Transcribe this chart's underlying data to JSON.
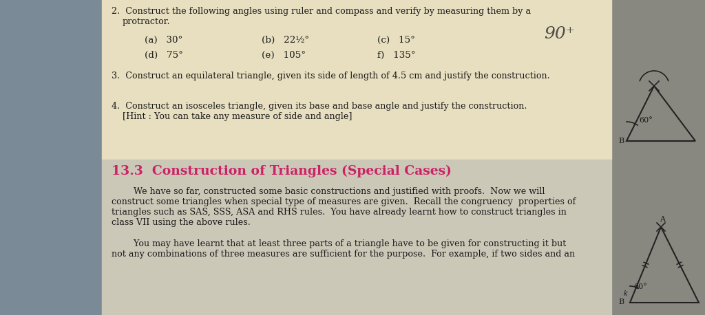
{
  "cream_bg": "#e8dfc0",
  "page_bg": "#a8a898",
  "lower_bg": "#c8c4b4",
  "left_bg": "#8090a0",
  "right_bg": "#909090",
  "title_color": "#cc2266",
  "body_color": "#1a1a1a",
  "q2_header1": "2.  Construct the following angles using ruler and compass and verify by measuring them by a",
  "q2_header2": "    protractor.",
  "q2_a": "(a)   30°",
  "q2_b": "(b)   22½°",
  "q2_c": "(c)   15°",
  "q2_d": "(d)   75°",
  "q2_e": "(e)   105°",
  "q2_f": "f)   135°",
  "q2_annot": "90⁺",
  "q3": "3.  Construct an equilateral triangle, given its side of length of 4.5 cm and justify the construction.",
  "q4_1": "4.  Construct an isosceles triangle, given its base and base angle and justify the construction.",
  "q4_2": "    [Hint : You can take any measure of side and angle]",
  "section_title": "13.3  Construction of Triangles (Special Cases)",
  "p1l1": "        We have so far, constructed some basic constructions and justified with proofs.  Now we will",
  "p1l2": "construct some triangles when special type of measures are given.  Recall the congruency  properties of",
  "p1l3": "triangles such as SAS, SSS, ASA and RHS rules.  You have already learnt how to construct triangles in",
  "p1l4": "class VII using the above rules.",
  "p2l1": "        You may have learnt that at least three parts of a triangle have to be given for constructing it but",
  "p2l2": "not any combinations of three measures are sufficient for the purpose.  For example, if two sides and an"
}
